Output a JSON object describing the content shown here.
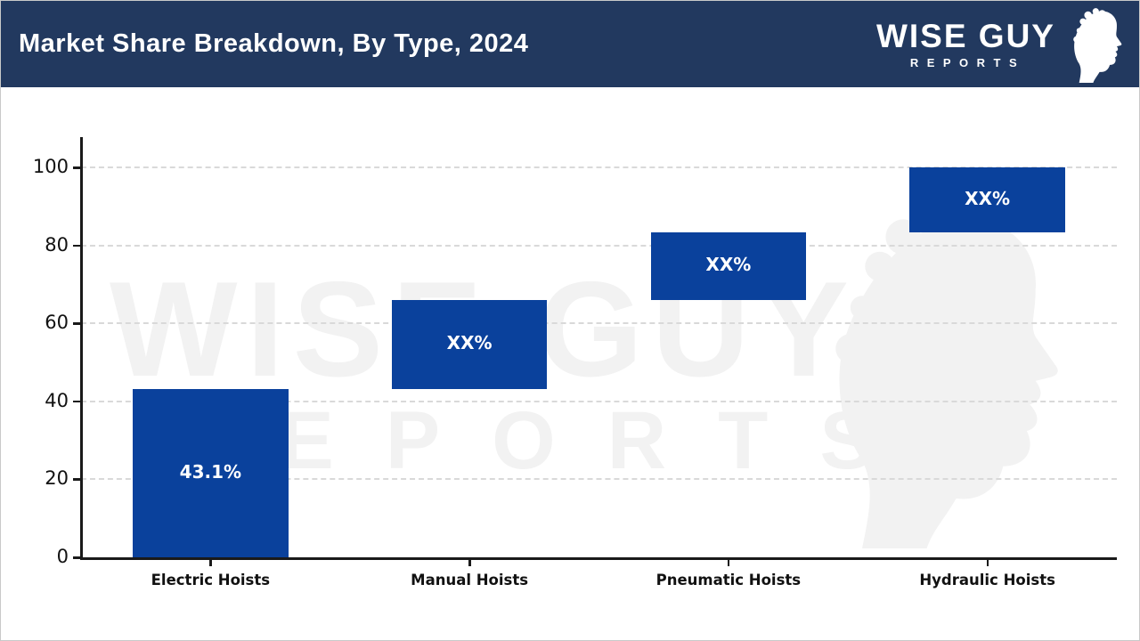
{
  "header": {
    "title": "Market Share Breakdown, By Type, 2024",
    "logo": {
      "line1": "WISE GUY",
      "line2": "REPORTS"
    }
  },
  "watermark": {
    "line1": "WISE GUY",
    "line2": "REPORTS"
  },
  "chart_data": {
    "type": "bar",
    "subtype": "waterfall",
    "title": "Market Share Breakdown, By Type, 2024",
    "xlabel": "",
    "ylabel": "",
    "categories": [
      "Electric Hoists",
      "Manual Hoists",
      "Pneumatic Hoists",
      "Hydraulic Hoists"
    ],
    "segments": [
      {
        "category": "Electric Hoists",
        "start": 0,
        "end": 43.1,
        "value": 43.1,
        "label": "43.1%"
      },
      {
        "category": "Manual Hoists",
        "start": 43.1,
        "end": 66.0,
        "value": 22.9,
        "label": "XX%"
      },
      {
        "category": "Pneumatic Hoists",
        "start": 66.0,
        "end": 83.3,
        "value": 17.3,
        "label": "XX%"
      },
      {
        "category": "Hydraulic Hoists",
        "start": 83.3,
        "end": 100.0,
        "value": 16.7,
        "label": "XX%"
      }
    ],
    "yticks": [
      0,
      20,
      40,
      60,
      80,
      100
    ],
    "ylim": [
      0,
      107
    ],
    "grid": "horizontal-dashed",
    "legend": "none",
    "colors": {
      "bar": "#0a419c",
      "bar_label": "#ffffff",
      "axis": "#1a1a1a",
      "gridline": "#d9d9d9",
      "header_bg": "#22395f",
      "watermark": "#f2f2f2"
    }
  }
}
